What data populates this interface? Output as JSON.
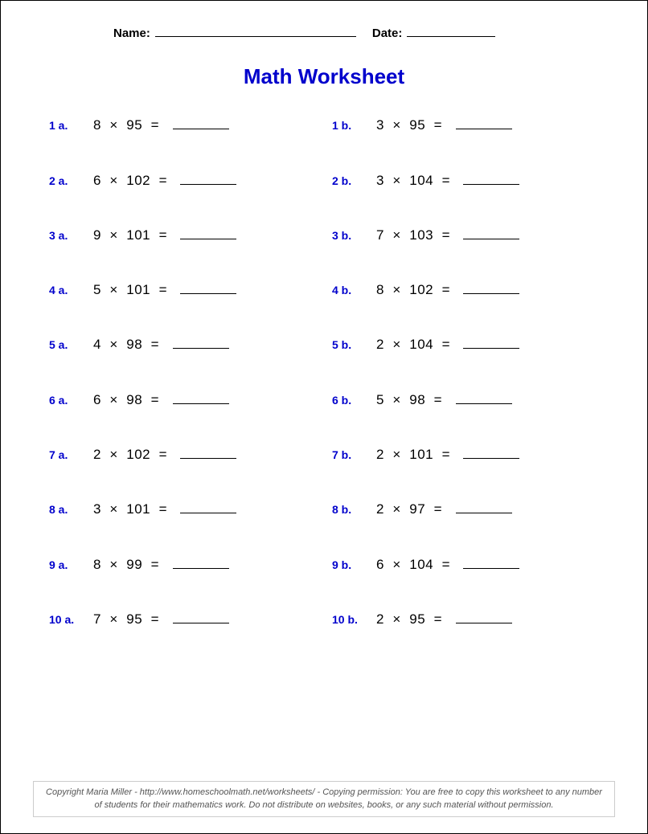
{
  "header": {
    "name_label": "Name:",
    "date_label": "Date:"
  },
  "title": "Math Worksheet",
  "label_color": "#0000cc",
  "title_color": "#0000cc",
  "problems": [
    {
      "label": "1 a.",
      "a": 8,
      "b": 95
    },
    {
      "label": "1 b.",
      "a": 3,
      "b": 95
    },
    {
      "label": "2 a.",
      "a": 6,
      "b": 102
    },
    {
      "label": "2 b.",
      "a": 3,
      "b": 104
    },
    {
      "label": "3 a.",
      "a": 9,
      "b": 101
    },
    {
      "label": "3 b.",
      "a": 7,
      "b": 103
    },
    {
      "label": "4 a.",
      "a": 5,
      "b": 101
    },
    {
      "label": "4 b.",
      "a": 8,
      "b": 102
    },
    {
      "label": "5 a.",
      "a": 4,
      "b": 98
    },
    {
      "label": "5 b.",
      "a": 2,
      "b": 104
    },
    {
      "label": "6 a.",
      "a": 6,
      "b": 98
    },
    {
      "label": "6 b.",
      "a": 5,
      "b": 98
    },
    {
      "label": "7 a.",
      "a": 2,
      "b": 102
    },
    {
      "label": "7 b.",
      "a": 2,
      "b": 101
    },
    {
      "label": "8 a.",
      "a": 3,
      "b": 101
    },
    {
      "label": "8 b.",
      "a": 2,
      "b": 97
    },
    {
      "label": "9 a.",
      "a": 8,
      "b": 99
    },
    {
      "label": "9 b.",
      "a": 6,
      "b": 104
    },
    {
      "label": "10 a.",
      "a": 7,
      "b": 95
    },
    {
      "label": "10 b.",
      "a": 2,
      "b": 95
    }
  ],
  "footer": "Copyright Maria Miller - http://www.homeschoolmath.net/worksheets/ - Copying permission: You are free to copy this worksheet to any number of students for their mathematics work. Do not distribute on websites, books, or any such material without permission."
}
